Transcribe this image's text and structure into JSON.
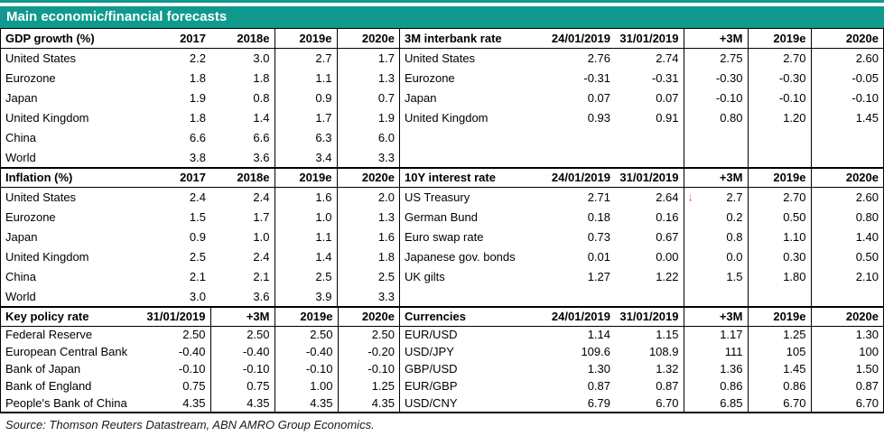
{
  "title": "Main economic/financial forecasts",
  "source": "Source: Thomson Reuters Datastream, ABN AMRO Group Economics.",
  "colors": {
    "accent_teal": "#109A8D",
    "arrow_red": "#E06666",
    "border_black": "#000000"
  },
  "annotation": {
    "table_path": "sections.right.1",
    "row": 0,
    "col": 3,
    "glyph": "↓"
  },
  "sections": {
    "left": [
      {
        "id": "gdp-growth",
        "header": [
          "GDP growth (%)",
          "2017",
          "2018e",
          "2019e",
          "2020e"
        ],
        "rows": [
          [
            "United States",
            "2.2",
            "3.0",
            "2.7",
            "1.7"
          ],
          [
            "Eurozone",
            "1.8",
            "1.8",
            "1.1",
            "1.3"
          ],
          [
            "Japan",
            "1.9",
            "0.8",
            "0.9",
            "0.7"
          ],
          [
            "United Kingdom",
            "1.8",
            "1.4",
            "1.7",
            "1.9"
          ],
          [
            "China",
            "6.6",
            "6.6",
            "6.3",
            "6.0"
          ],
          [
            "World",
            "3.8",
            "3.6",
            "3.4",
            "3.3"
          ]
        ],
        "empty_rows": 0
      },
      {
        "id": "inflation",
        "header": [
          "Inflation (%)",
          "2017",
          "2018e",
          "2019e",
          "2020e"
        ],
        "rows": [
          [
            "United States",
            "2.4",
            "2.4",
            "1.6",
            "2.0"
          ],
          [
            "Eurozone",
            "1.5",
            "1.7",
            "1.0",
            "1.3"
          ],
          [
            "Japan",
            "0.9",
            "1.0",
            "1.1",
            "1.6"
          ],
          [
            "United Kingdom",
            "2.5",
            "2.4",
            "1.4",
            "1.8"
          ],
          [
            "China",
            "2.1",
            "2.1",
            "2.5",
            "2.5"
          ],
          [
            "World",
            "3.0",
            "3.6",
            "3.9",
            "3.3"
          ]
        ],
        "empty_rows": 0
      },
      {
        "id": "key-policy-rate",
        "header": [
          "Key policy rate",
          "31/01/2019",
          "+3M",
          "2019e",
          "2020e"
        ],
        "rows": [
          [
            "Federal Reserve",
            "2.50",
            "2.50",
            "2.50",
            "2.50"
          ],
          [
            "European Central Bank",
            "-0.40",
            "-0.40",
            "-0.40",
            "-0.20"
          ],
          [
            "Bank of Japan",
            "-0.10",
            "-0.10",
            "-0.10",
            "-0.10"
          ],
          [
            "Bank of England",
            "0.75",
            "0.75",
            "1.00",
            "1.25"
          ],
          [
            "People's Bank of China",
            "4.35",
            "4.35",
            "4.35",
            "4.35"
          ]
        ],
        "empty_rows": 0
      }
    ],
    "right": [
      {
        "id": "interbank-rate",
        "header": [
          "3M interbank rate",
          "24/01/2019",
          "31/01/2019",
          "+3M",
          "2019e",
          "2020e"
        ],
        "rows": [
          [
            "United States",
            "2.76",
            "2.74",
            "2.75",
            "2.70",
            "2.60"
          ],
          [
            "Eurozone",
            "-0.31",
            "-0.31",
            "-0.30",
            "-0.30",
            "-0.05"
          ],
          [
            "Japan",
            "0.07",
            "0.07",
            "-0.10",
            "-0.10",
            "-0.10"
          ],
          [
            "United Kingdom",
            "0.93",
            "0.91",
            "0.80",
            "1.20",
            "1.45"
          ]
        ],
        "empty_rows": 2
      },
      {
        "id": "ten-year-interest-rate",
        "header": [
          "10Y interest rate",
          "24/01/2019",
          "31/01/2019",
          "+3M",
          "2019e",
          "2020e"
        ],
        "rows": [
          [
            "US Treasury",
            "2.71",
            "2.64",
            "2.7",
            "2.70",
            "2.60"
          ],
          [
            "German Bund",
            "0.18",
            "0.16",
            "0.2",
            "0.50",
            "0.80"
          ],
          [
            "Euro swap rate",
            "0.73",
            "0.67",
            "0.8",
            "1.10",
            "1.40"
          ],
          [
            "Japanese gov. bonds",
            "0.01",
            "0.00",
            "0.0",
            "0.30",
            "0.50"
          ],
          [
            "UK gilts",
            "1.27",
            "1.22",
            "1.5",
            "1.80",
            "2.10"
          ]
        ],
        "empty_rows": 1
      },
      {
        "id": "currencies",
        "header": [
          "Currencies",
          "24/01/2019",
          "31/01/2019",
          "+3M",
          "2019e",
          "2020e"
        ],
        "rows": [
          [
            "EUR/USD",
            "1.14",
            "1.15",
            "1.17",
            "1.25",
            "1.30"
          ],
          [
            "USD/JPY",
            "109.6",
            "108.9",
            "111",
            "105",
            "100"
          ],
          [
            "GBP/USD",
            "1.30",
            "1.32",
            "1.36",
            "1.45",
            "1.50"
          ],
          [
            "EUR/GBP",
            "0.87",
            "0.87",
            "0.86",
            "0.86",
            "0.87"
          ],
          [
            "USD/CNY",
            "6.79",
            "6.70",
            "6.85",
            "6.70",
            "6.70"
          ]
        ],
        "empty_rows": 0
      }
    ]
  }
}
